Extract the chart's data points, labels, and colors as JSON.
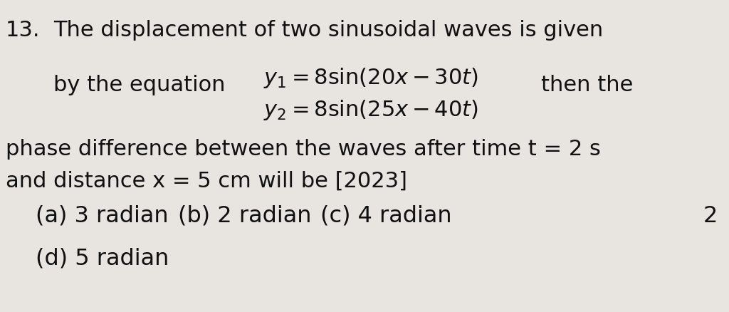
{
  "bg_color": "#e8e4e0",
  "text_color": "#111111",
  "fig_width": 10.24,
  "fig_height": 4.39,
  "dpi": 100,
  "q_num": "13.",
  "line1_text": "The displacement of two sinusoidal waves is given",
  "by_eq_text": "by the equation",
  "eq1_text": "$y_1 = 8\\sin(20x - 30t)$",
  "then_text": "then the",
  "eq2_text": "$y_2 = 8\\sin(25x - 40t)$",
  "line4_text": "phase difference between the waves after time t = 2 s",
  "line5_text": "and distance x = 5 cm will be [2023]",
  "opt_a": "(a) 3 radian",
  "opt_b": "(b) 2 radian",
  "opt_c": "(c) 4 radian",
  "opt_d": "(d) 5 radian",
  "num2": "2",
  "fs_title": 22,
  "fs_body": 22,
  "fs_opt": 23
}
